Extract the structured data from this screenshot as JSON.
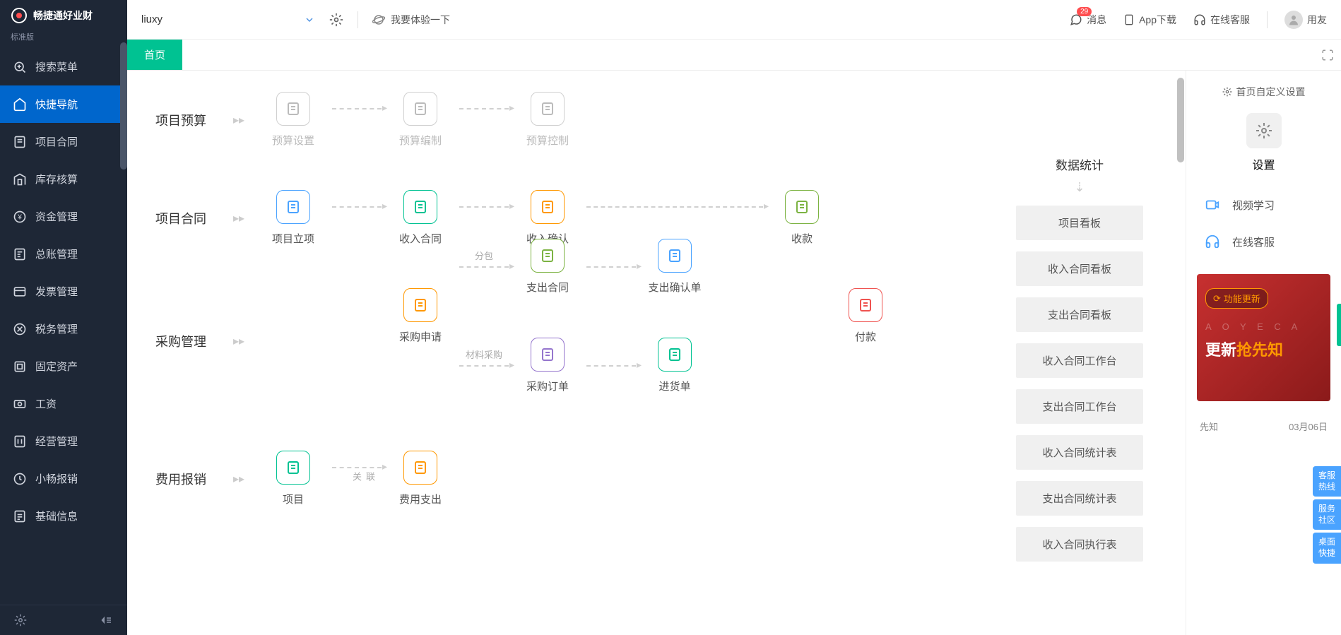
{
  "brand": {
    "name": "畅捷通好业财",
    "edition": "标准版"
  },
  "sidebar": {
    "items": [
      {
        "label": "搜索菜单",
        "icon": "search"
      },
      {
        "label": "快捷导航",
        "icon": "home",
        "active": true
      },
      {
        "label": "项目合同",
        "icon": "doc"
      },
      {
        "label": "库存核算",
        "icon": "warehouse"
      },
      {
        "label": "资金管理",
        "icon": "money"
      },
      {
        "label": "总账管理",
        "icon": "ledger"
      },
      {
        "label": "发票管理",
        "icon": "invoice"
      },
      {
        "label": "税务管理",
        "icon": "tax"
      },
      {
        "label": "固定资产",
        "icon": "asset"
      },
      {
        "label": "工资",
        "icon": "salary"
      },
      {
        "label": "经营管理",
        "icon": "biz"
      },
      {
        "label": "小畅报销",
        "icon": "reimburse"
      },
      {
        "label": "基础信息",
        "icon": "info"
      }
    ]
  },
  "topbar": {
    "user": "liuxy",
    "try_text": "我要体验一下",
    "message_label": "消息",
    "message_count": "29",
    "app_download": "App下载",
    "support": "在线客服",
    "username": "用友"
  },
  "tabs": {
    "home": "首页"
  },
  "flowchart": {
    "rows": [
      {
        "label": "项目预算",
        "nodes": [
          {
            "label": "预算设置",
            "color": "disabled"
          },
          {
            "label": "预算编制",
            "color": "disabled"
          },
          {
            "label": "预算控制",
            "color": "disabled"
          }
        ]
      },
      {
        "label": "项目合同",
        "nodes": [
          {
            "label": "项目立项",
            "color": "blue"
          },
          {
            "label": "收入合同",
            "color": "teal"
          },
          {
            "label": "收入确认",
            "color": "orange"
          },
          {
            "label": "收款",
            "color": "green"
          }
        ]
      },
      {
        "label": "采购管理",
        "branch_labels": {
          "top": "分包",
          "bottom": "材料采购"
        },
        "nodes": [
          {
            "label": "采购申请",
            "color": "orange"
          },
          {
            "label": "支出合同",
            "color": "green"
          },
          {
            "label": "支出确认单",
            "color": "blue"
          },
          {
            "label": "采购订单",
            "color": "purple"
          },
          {
            "label": "进货单",
            "color": "teal"
          },
          {
            "label": "付款",
            "color": "red"
          }
        ]
      },
      {
        "label": "费用报销",
        "relation_label": "关联",
        "nodes": [
          {
            "label": "项目",
            "color": "teal"
          },
          {
            "label": "费用支出",
            "color": "orange"
          }
        ]
      }
    ],
    "stats": {
      "title": "数据统计",
      "buttons": [
        "项目看板",
        "收入合同看板",
        "支出合同看板",
        "收入合同工作台",
        "支出合同工作台",
        "收入合同统计表",
        "支出合同统计表",
        "收入合同执行表"
      ]
    }
  },
  "right_panel": {
    "settings_title": "首页自定义设置",
    "settings_label": "设置",
    "actions": [
      {
        "label": "视频学习",
        "icon": "video"
      },
      {
        "label": "在线客服",
        "icon": "headset"
      }
    ],
    "promo": {
      "button": "功能更新",
      "faded": "A O Y E C A",
      "big_white": "更新",
      "big_orange": "抢先知",
      "footer_left": "先知",
      "footer_right": "03月06日"
    }
  },
  "float_buttons": [
    "客服热线",
    "服务社区",
    "桌面快捷"
  ]
}
